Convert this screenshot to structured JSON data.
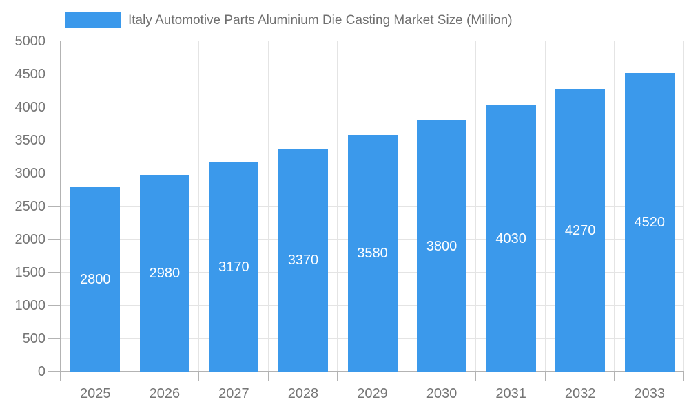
{
  "chart_data": {
    "type": "bar",
    "title": "Italy Automotive Parts Aluminium Die Casting Market Size (Million)",
    "categories": [
      "2025",
      "2026",
      "2027",
      "2028",
      "2029",
      "2030",
      "2031",
      "2032",
      "2033"
    ],
    "values": [
      2800,
      2980,
      3170,
      3370,
      3580,
      3800,
      4030,
      4270,
      4520
    ],
    "xlabel": "",
    "ylabel": "",
    "ylim": [
      0,
      5000
    ],
    "yticks": [
      0,
      500,
      1000,
      1500,
      2000,
      2500,
      3000,
      3500,
      4000,
      4500,
      5000
    ],
    "grid": "on",
    "legend_position": "top-left",
    "bar_labels_inside": true,
    "colors": {
      "bar": "#3B99EB",
      "bar_value_text": "#FFFFFF",
      "axis_text": "#757575",
      "legend_text": "#6F6F6F",
      "gridline": "#E4E4E4",
      "axis_line": "#B3B3B3",
      "background": "#FFFFFF"
    }
  }
}
